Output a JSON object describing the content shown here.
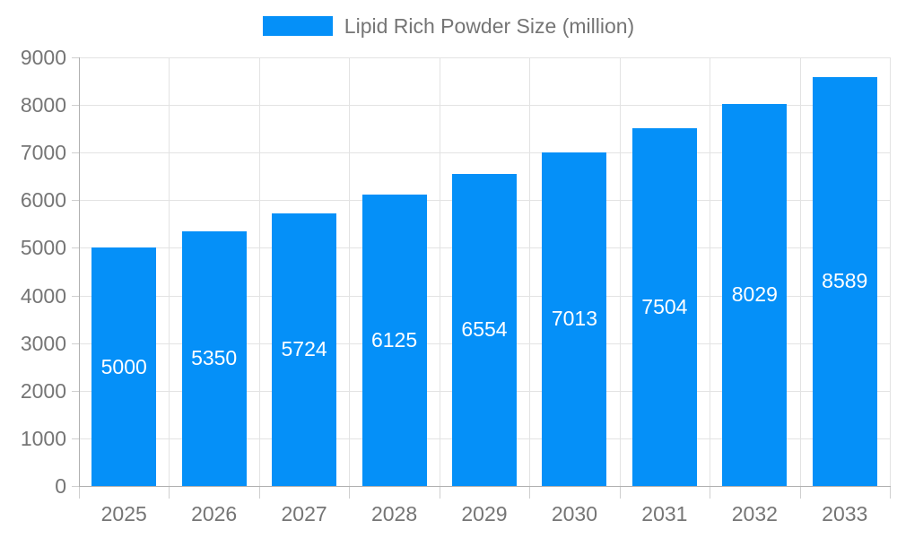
{
  "legend": {
    "label": "Lipid Rich Powder Size (million)"
  },
  "chart_data": {
    "type": "bar",
    "title": "Lipid Rich Powder Size (million)",
    "series_name": "Lipid Rich Powder Size (million)",
    "categories": [
      "2025",
      "2026",
      "2027",
      "2028",
      "2029",
      "2030",
      "2031",
      "2032",
      "2033"
    ],
    "values": [
      5000,
      5350,
      5724,
      6125,
      6554,
      7013,
      7504,
      8029,
      8589
    ],
    "data_labels": [
      5000,
      5350,
      5724,
      6125,
      6554,
      7013,
      7504,
      8029,
      8589
    ],
    "xlabel": "",
    "ylabel": "",
    "ylim": [
      0,
      9000
    ],
    "ytick_interval": 1000,
    "ytick_labels": [
      "0",
      "1000",
      "2000",
      "3000",
      "4000",
      "5000",
      "6000",
      "7000",
      "8000",
      "9000"
    ],
    "grid": true,
    "legend_position": "top-center",
    "data_label_position": "inside-center"
  },
  "colors": {
    "bar": "#0590f8",
    "bar_label_text": "#ffffff",
    "axis_text": "#757575",
    "grid_line": "#e3e3e3",
    "axis_line": "#b0b0b0",
    "tick": "#cfcfcf",
    "background": "#ffffff"
  }
}
